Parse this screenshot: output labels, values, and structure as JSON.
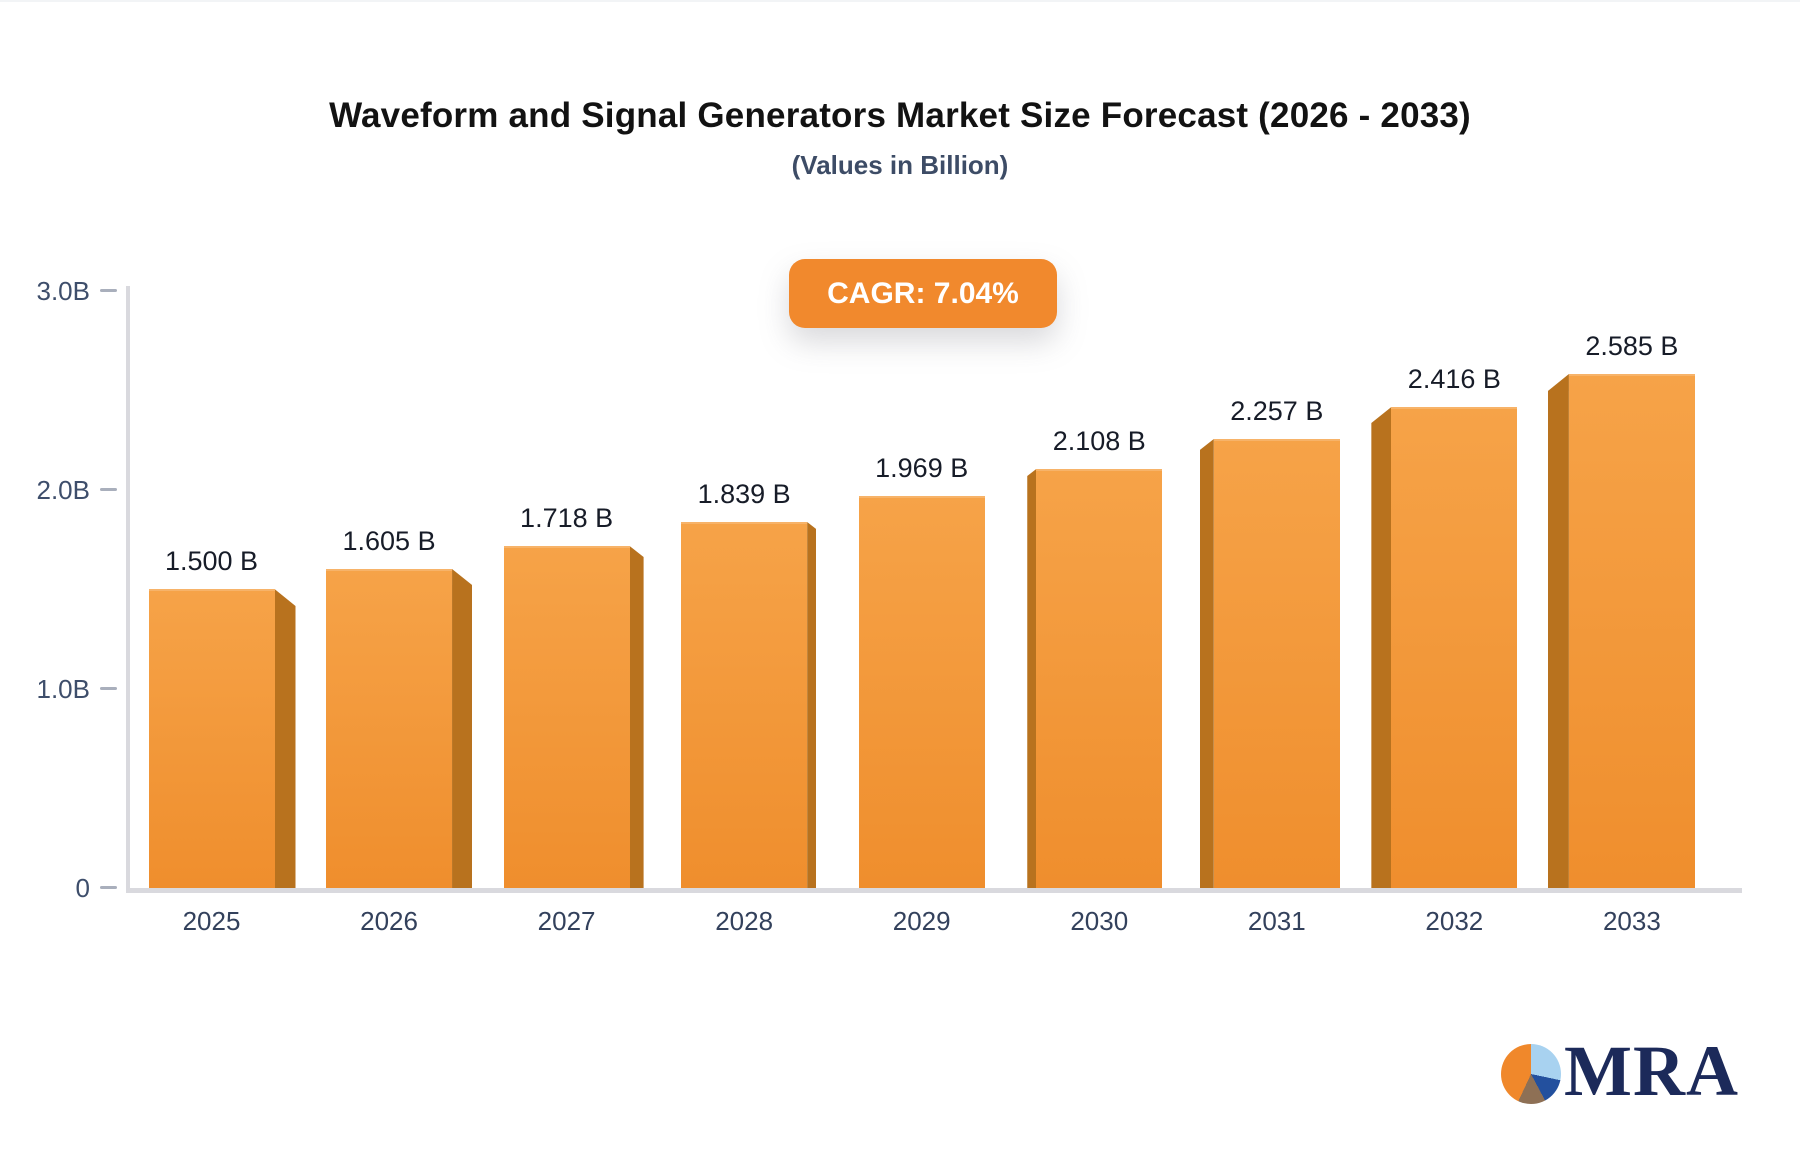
{
  "header": {
    "title": "Waveform and Signal Generators Market Size Forecast (2026 - 2033)",
    "subtitle": "(Values in Billion)",
    "cagr_badge": "CAGR: 7.04%"
  },
  "chart_data": {
    "type": "bar",
    "title": "Waveform and Signal Generators Market Size Forecast (2026 - 2033)",
    "subtitle": "(Values in Billion)",
    "annotation": "CAGR: 7.04%",
    "categories": [
      "2025",
      "2026",
      "2027",
      "2028",
      "2029",
      "2030",
      "2031",
      "2032",
      "2033"
    ],
    "values": [
      1.5,
      1.605,
      1.718,
      1.839,
      1.969,
      2.108,
      2.257,
      2.416,
      2.585
    ],
    "value_labels": [
      "1.500 B",
      "1.605 B",
      "1.718 B",
      "1.839 B",
      "1.969 B",
      "2.108 B",
      "2.257 B",
      "2.416 B",
      "2.585 B"
    ],
    "xlabel": "",
    "ylabel": "",
    "ylim": [
      0,
      3
    ],
    "yticks": [
      {
        "value": 0,
        "label": "0"
      },
      {
        "value": 1,
        "label": "1.0B"
      },
      {
        "value": 2,
        "label": "2.0B"
      },
      {
        "value": 3,
        "label": "3.0B"
      }
    ],
    "grid": false,
    "legend": false,
    "bar_style": "3d-perspective"
  },
  "colors": {
    "badge_bg": "#F1892D",
    "bar_top": "#F6A348",
    "bar_bottom": "#EF8E2D",
    "bar_side": "#B8721E",
    "axis": "#D9D9DE",
    "title": "#121212",
    "subtitle": "#3D4C66",
    "tick_label": "#3E4E6B",
    "x_label": "#33415C",
    "value_label": "#171C28"
  },
  "logo": {
    "text": "MRA",
    "pie_orange": "#F0882B",
    "pie_light_blue": "#A8D2F0",
    "pie_blue": "#23509E",
    "pie_brown": "#8E7055",
    "navy": "#1C2A5A"
  }
}
